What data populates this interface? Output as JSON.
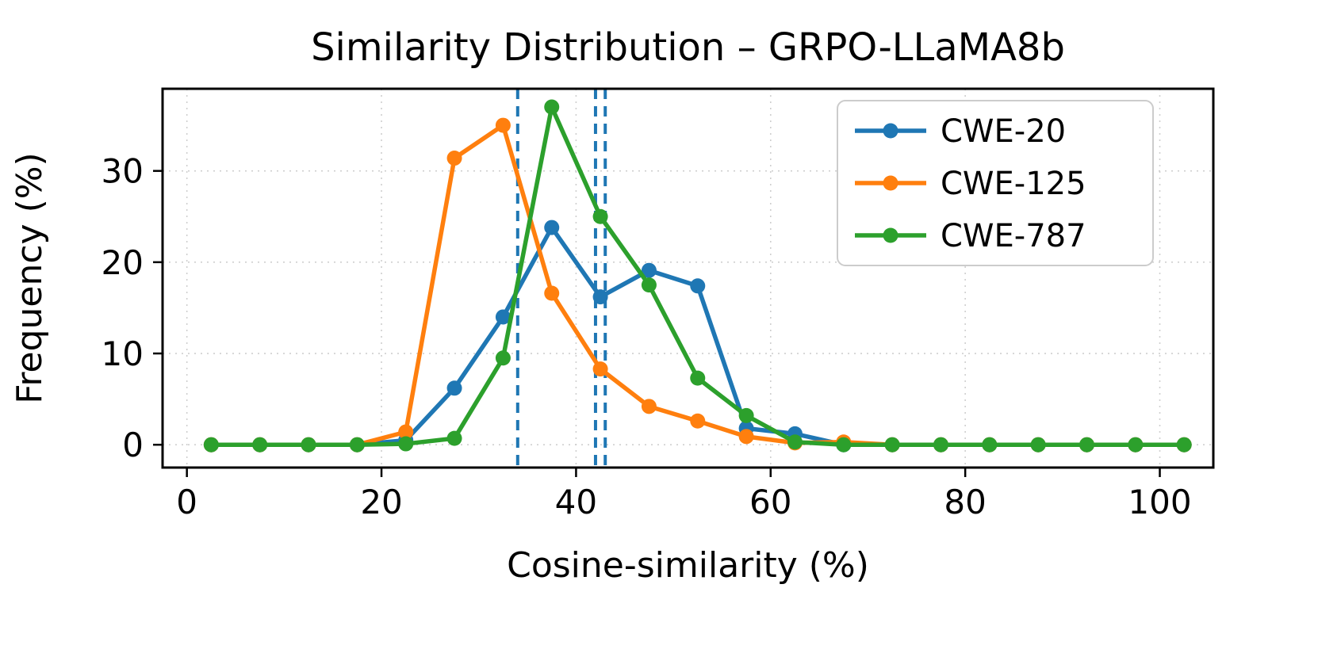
{
  "figure": {
    "background": "#ffffff",
    "frame_color": "#000000",
    "grid_color": "#cfcfcf"
  },
  "chart_data": {
    "type": "line",
    "title": "Similarity Distribution – GRPO-LLaMA8b",
    "xlabel": "Cosine-similarity (%)",
    "ylabel": "Frequency (%)",
    "x": [
      2.5,
      7.5,
      12.5,
      17.5,
      22.5,
      27.5,
      32.5,
      37.5,
      42.5,
      47.5,
      52.5,
      57.5,
      62.5,
      67.5,
      72.5,
      77.5,
      82.5,
      87.5,
      92.5,
      97.5,
      102.5
    ],
    "series": [
      {
        "name": "CWE-20",
        "color": "#1f77b4",
        "values": [
          0,
          0,
          0,
          0,
          0.5,
          6.2,
          14.0,
          23.8,
          16.2,
          19.1,
          17.4,
          1.8,
          1.2,
          0,
          0,
          0,
          0,
          0,
          0,
          0,
          0
        ]
      },
      {
        "name": "CWE-125",
        "color": "#ff7f0e",
        "values": [
          0,
          0,
          0,
          0,
          1.4,
          31.4,
          35.0,
          16.6,
          8.3,
          4.2,
          2.6,
          0.9,
          0.2,
          0.3,
          0,
          0,
          0,
          0,
          0,
          0,
          0
        ]
      },
      {
        "name": "CWE-787",
        "color": "#2ca02c",
        "values": [
          0,
          0,
          0,
          0,
          0.1,
          0.7,
          9.5,
          37.0,
          25.0,
          17.5,
          7.3,
          3.2,
          0.3,
          0,
          0,
          0,
          0,
          0,
          0,
          0,
          0
        ]
      }
    ],
    "vlines": [
      {
        "x": 34.0,
        "color": "#1f77b4",
        "style": "dashed"
      },
      {
        "x": 42.0,
        "color": "#1f77b4",
        "style": "dashed"
      },
      {
        "x": 43.0,
        "color": "#1f77b4",
        "style": "dashed"
      }
    ],
    "xticks": {
      "values": [
        0,
        20,
        40,
        60,
        80,
        100
      ],
      "labels": [
        "0",
        "20",
        "40",
        "60",
        "80",
        "100"
      ]
    },
    "yticks": {
      "values": [
        0,
        10,
        20,
        30
      ],
      "labels": [
        "0",
        "10",
        "20",
        "30"
      ]
    },
    "xlim": [
      -2.5,
      105.5
    ],
    "ylim": [
      -2.5,
      39
    ],
    "grid": true,
    "legend": {
      "position": "upper right",
      "entries": [
        "CWE-20",
        "CWE-125",
        "CWE-787"
      ]
    }
  }
}
